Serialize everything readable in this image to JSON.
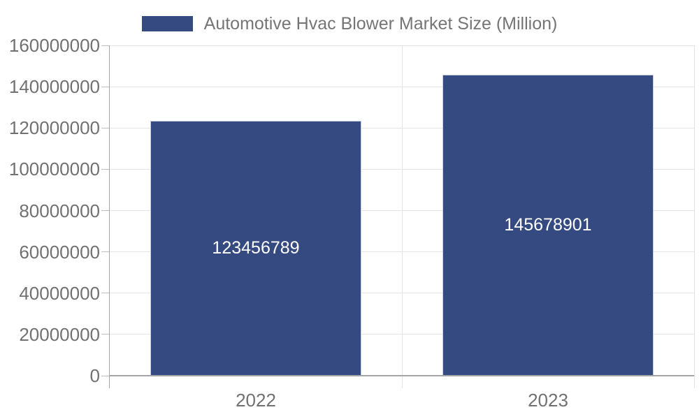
{
  "legend": {
    "label": "Automotive Hvac Blower Market Size (Million)",
    "text_color": "#757575"
  },
  "chart_data": {
    "type": "bar",
    "title": "",
    "xlabel": "",
    "ylabel": "",
    "categories": [
      "2022",
      "2023"
    ],
    "series": [
      {
        "name": "Automotive Hvac Blower Market Size (Million)",
        "values": [
          123456789,
          145678901
        ],
        "data_labels": [
          "123456789",
          "145678901"
        ]
      }
    ],
    "ylim": [
      0,
      160000000
    ],
    "ytick_step": 20000000,
    "ytick_labels": [
      "0",
      "20000000",
      "40000000",
      "60000000",
      "80000000",
      "100000000",
      "120000000",
      "140000000",
      "160000000"
    ],
    "grid": true,
    "legend_position": "top",
    "colors": {
      "bar": "#364a82",
      "bar_border": "#c7cde0",
      "grid": "#e3e3e8",
      "axis_line": "#a5a5a8",
      "tick": "#bdbdc2",
      "axis_label": "#717171",
      "data_label": "#ffffff"
    }
  }
}
